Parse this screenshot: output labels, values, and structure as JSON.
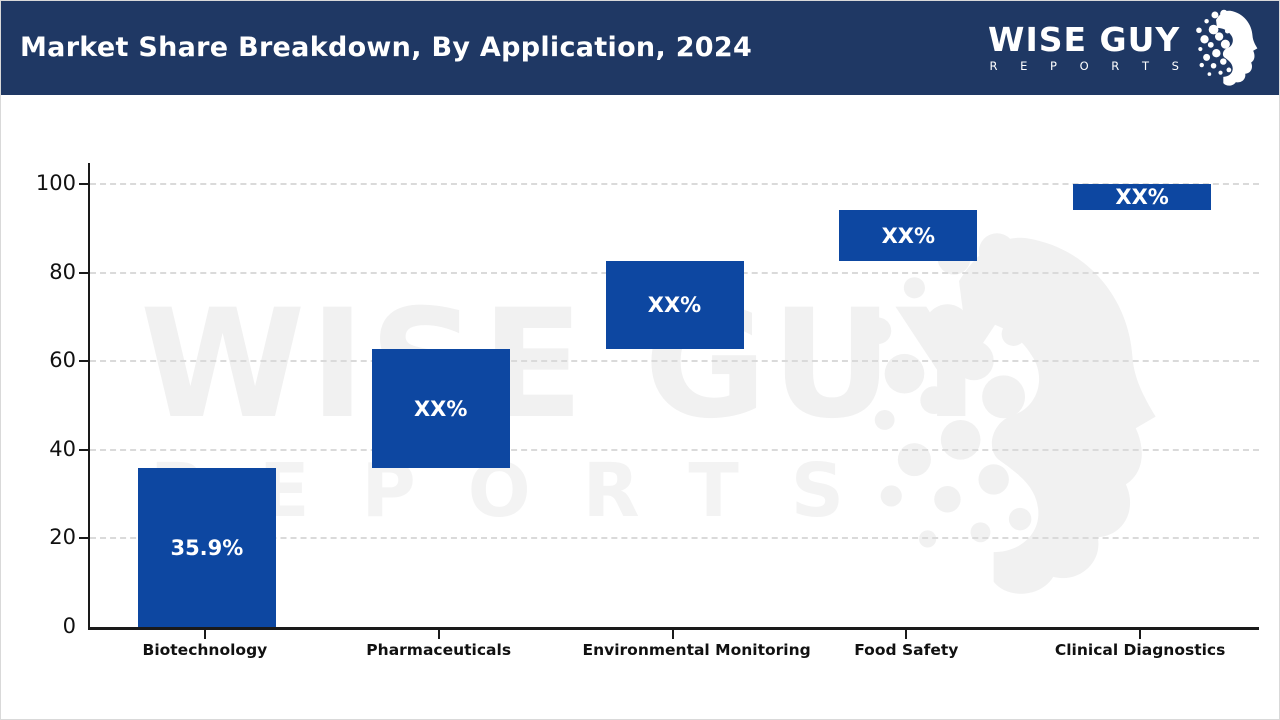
{
  "header": {
    "title": "Market Share Breakdown, By Application, 2024",
    "bg_color": "#1f3864",
    "logo": {
      "line1": "WISE GUY",
      "line2": "R E P O R T S"
    }
  },
  "watermark": {
    "line1": "WISE GUY",
    "line2": "REPORTS"
  },
  "chart_data": {
    "type": "bar",
    "subtype": "waterfall",
    "title": "Market Share Breakdown, By Application, 2024",
    "xlabel": "",
    "ylabel": "",
    "categories": [
      "Biotechnology",
      "Pharmaceuticals",
      "Environmental Monitoring",
      "Food Safety",
      "Clinical Diagnostics"
    ],
    "segments": [
      {
        "category": "Biotechnology",
        "start": 0,
        "end": 35.9,
        "label": "35.9%"
      },
      {
        "category": "Environmental Monitoring",
        "start": 35.9,
        "end": 62.7,
        "label": "XX%"
      },
      {
        "category": "Pharmaceuticals",
        "start": 62.7,
        "end": 82.7,
        "label": "XX%"
      },
      {
        "category": "Food Safety",
        "start": 82.7,
        "end": 94.1,
        "label": "XX%"
      },
      {
        "category": "Clinical Diagnostics",
        "start": 94.1,
        "end": 100,
        "label": "XX%"
      }
    ],
    "yticks": [
      0,
      20,
      40,
      60,
      80,
      100
    ],
    "ylim": [
      0,
      104.8
    ],
    "grid": "dashed-horizontal",
    "legend": "none",
    "bar_color": "#0d47a1",
    "bar_label_color": "#ffffff",
    "axis_color": "#1a1a1a"
  }
}
